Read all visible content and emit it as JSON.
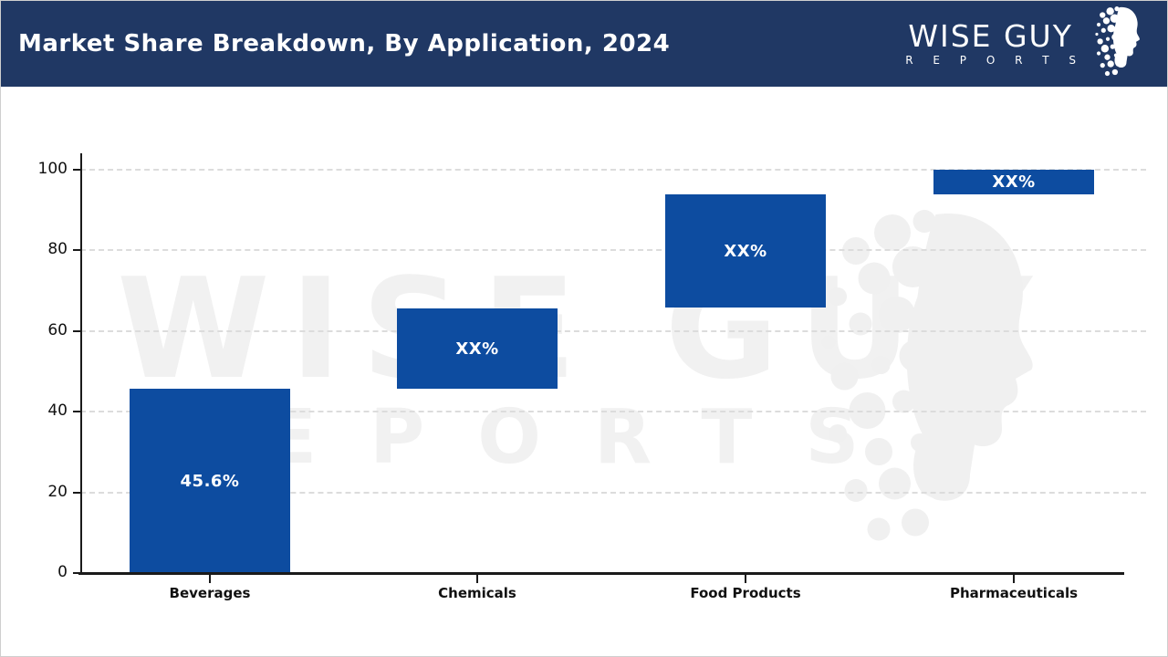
{
  "header": {
    "title": "Market Share Breakdown, By Application, 2024",
    "bg_color": "#203864",
    "logo": {
      "line1": "WISE GUY",
      "line2": "R E P O R T S"
    }
  },
  "watermark": {
    "line1": "WISE GUY",
    "line2": "REPORTS"
  },
  "chart_data": {
    "type": "bar",
    "subtype": "floating-waterfall",
    "title": "Market Share Breakdown, By Application, 2024",
    "categories": [
      "Beverages",
      "Chemicals",
      "Food Products",
      "Pharmaceuticals"
    ],
    "series": [
      {
        "name": "Market Share (%)",
        "segments": [
          {
            "category": "Beverages",
            "start": 0,
            "end": 45.6,
            "label": "45.6%"
          },
          {
            "category": "Chemicals",
            "start": 45.6,
            "end": 65.7,
            "label": "XX%"
          },
          {
            "category": "Food Products",
            "start": 65.8,
            "end": 93.8,
            "label": "XX%"
          },
          {
            "category": "Pharmaceuticals",
            "start": 93.9,
            "end": 100.1,
            "label": "XX%"
          }
        ]
      }
    ],
    "yticks": [
      0,
      20,
      40,
      60,
      80,
      100
    ],
    "ylim": [
      0,
      104
    ],
    "xlabel": "",
    "ylabel": "",
    "bar_color": "#0D4CA0",
    "grid": "horizontal-dashed",
    "legend": "none"
  }
}
